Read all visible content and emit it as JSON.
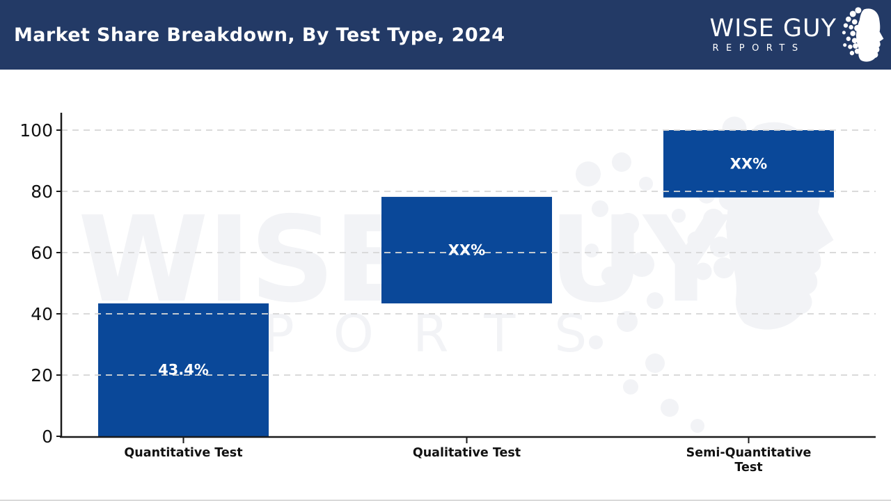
{
  "header": {
    "title": "Market Share Breakdown, By Test Type, 2024",
    "bg_color": "#233a66",
    "logo": {
      "line1": "WISE GUY",
      "line2": "REPORTS"
    }
  },
  "watermark": {
    "word1": "WISE GUY",
    "word2": "REPORTS"
  },
  "chart_data": {
    "type": "bar",
    "subtype": "floating-stacked-percentage",
    "title": "Market Share Breakdown, By Test Type, 2024",
    "categories": [
      "Quantitative Test",
      "Qualitative Test",
      "Semi-Quantitative Test"
    ],
    "segments": [
      {
        "category": "Quantitative Test",
        "start": 0,
        "end": 43.4,
        "label": "43.4%"
      },
      {
        "category": "Qualitative Test",
        "start": 43.4,
        "end": 78.2,
        "label": "XX%"
      },
      {
        "category": "Semi-Quantitative Test",
        "start": 78,
        "end": 100,
        "label": "XX%"
      }
    ],
    "yticks": [
      0,
      20,
      40,
      60,
      80,
      100
    ],
    "ylim": [
      0,
      105
    ],
    "xlabel": "",
    "ylabel": "",
    "grid": "dashed-horizontal",
    "legend": "none",
    "colors": {
      "bar": "#0a4899",
      "grid": "#d7d7d7",
      "axis": "#1a1a1a",
      "watermark": "#f2f3f6"
    }
  }
}
